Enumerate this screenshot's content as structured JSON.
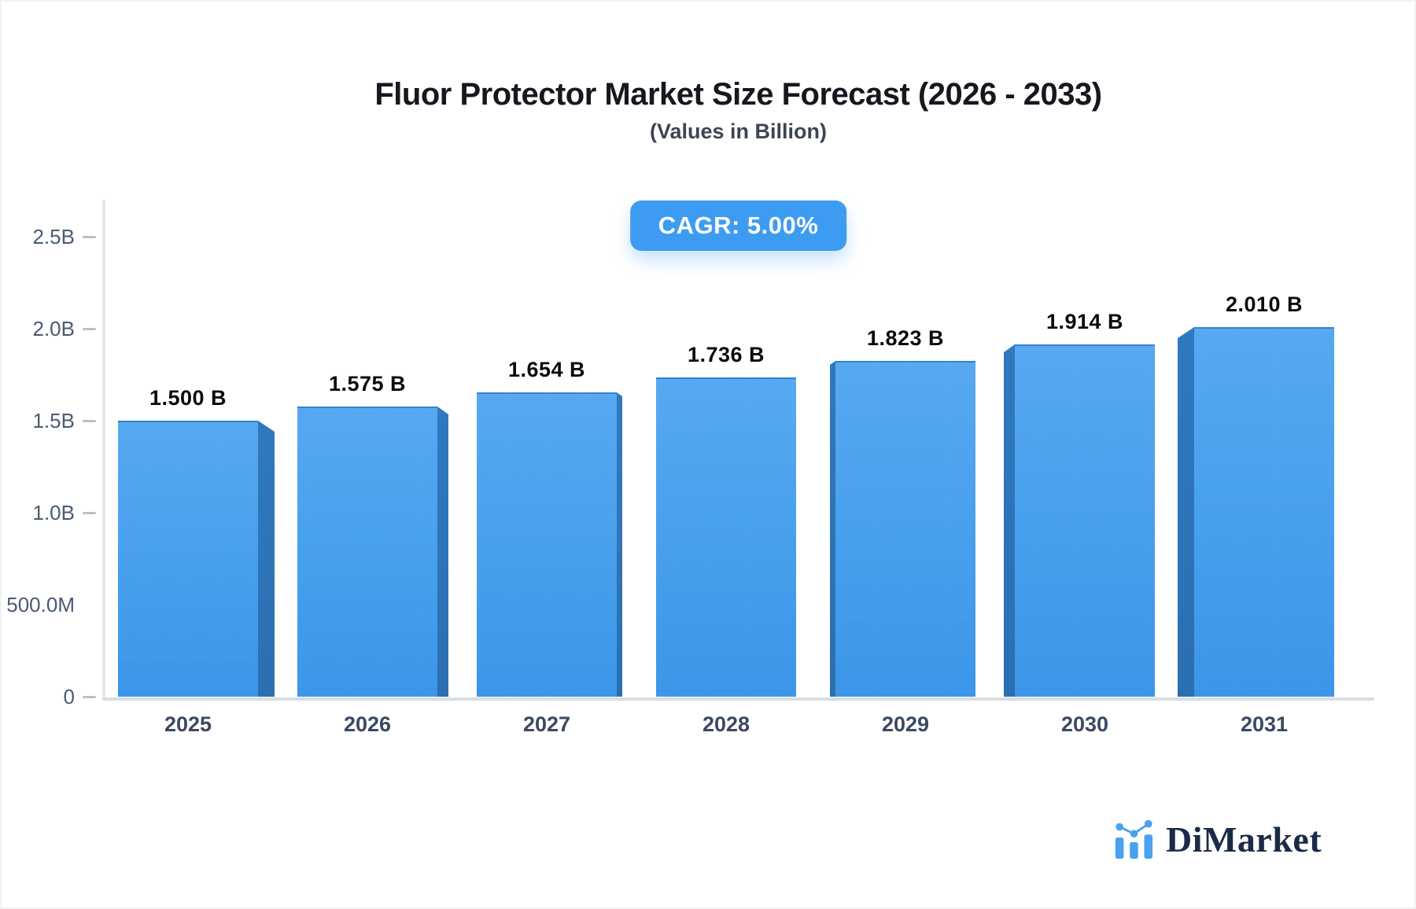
{
  "header": {
    "title": "Fluor Protector Market Size Forecast (2026 - 2033)",
    "subtitle": "(Values in Billion)",
    "cagr_label": "CAGR: 5.00%"
  },
  "chart_data": {
    "type": "bar",
    "title": "Fluor Protector Market Size Forecast (2026 - 2033)",
    "subtitle": "(Values in Billion)",
    "cagr": "5.00%",
    "categories": [
      "2025",
      "2026",
      "2027",
      "2028",
      "2029",
      "2030",
      "2031"
    ],
    "values": [
      1.5,
      1.575,
      1.654,
      1.736,
      1.823,
      1.914,
      2.01
    ],
    "value_labels": [
      "1.500 B",
      "1.575 B",
      "1.654 B",
      "1.736 B",
      "1.823 B",
      "1.914 B",
      "2.010 B"
    ],
    "ylim": [
      0,
      2.5
    ],
    "y_ticks": [
      {
        "label": "2.5B",
        "value": 2.5,
        "dash": true
      },
      {
        "label": "2.0B",
        "value": 2.0,
        "dash": true
      },
      {
        "label": "1.5B",
        "value": 1.5,
        "dash": true
      },
      {
        "label": "1.0B",
        "value": 1.0,
        "dash": true
      },
      {
        "label": "500.0M",
        "value": 0.5,
        "dash": false
      },
      {
        "label": "0",
        "value": 0.0,
        "dash": true
      }
    ],
    "xlabel": "",
    "ylabel": "",
    "legend": "none",
    "grid": "off",
    "bar_color": "#4aa1ee",
    "bar_side_color": "#2e75ba",
    "style": "3d-center-perspective"
  },
  "branding": {
    "logo_text": "DiMarket",
    "logo_icon": "bar-chart-logo-icon",
    "logo_icon_color": "#4aa2ee",
    "logo_text_color": "#1b2a47"
  },
  "colors": {
    "badge_bg": "#3d9cf1",
    "badge_text": "#ffffff",
    "axis_line": "#e4e8ed",
    "baseline": "#d8dee5",
    "tick": "#b8c1ca",
    "y_label": "#4a5a72",
    "x_label": "#3b4963",
    "value_label": "#0b0b0b",
    "title": "#15181e",
    "subtitle": "#3d4553"
  }
}
